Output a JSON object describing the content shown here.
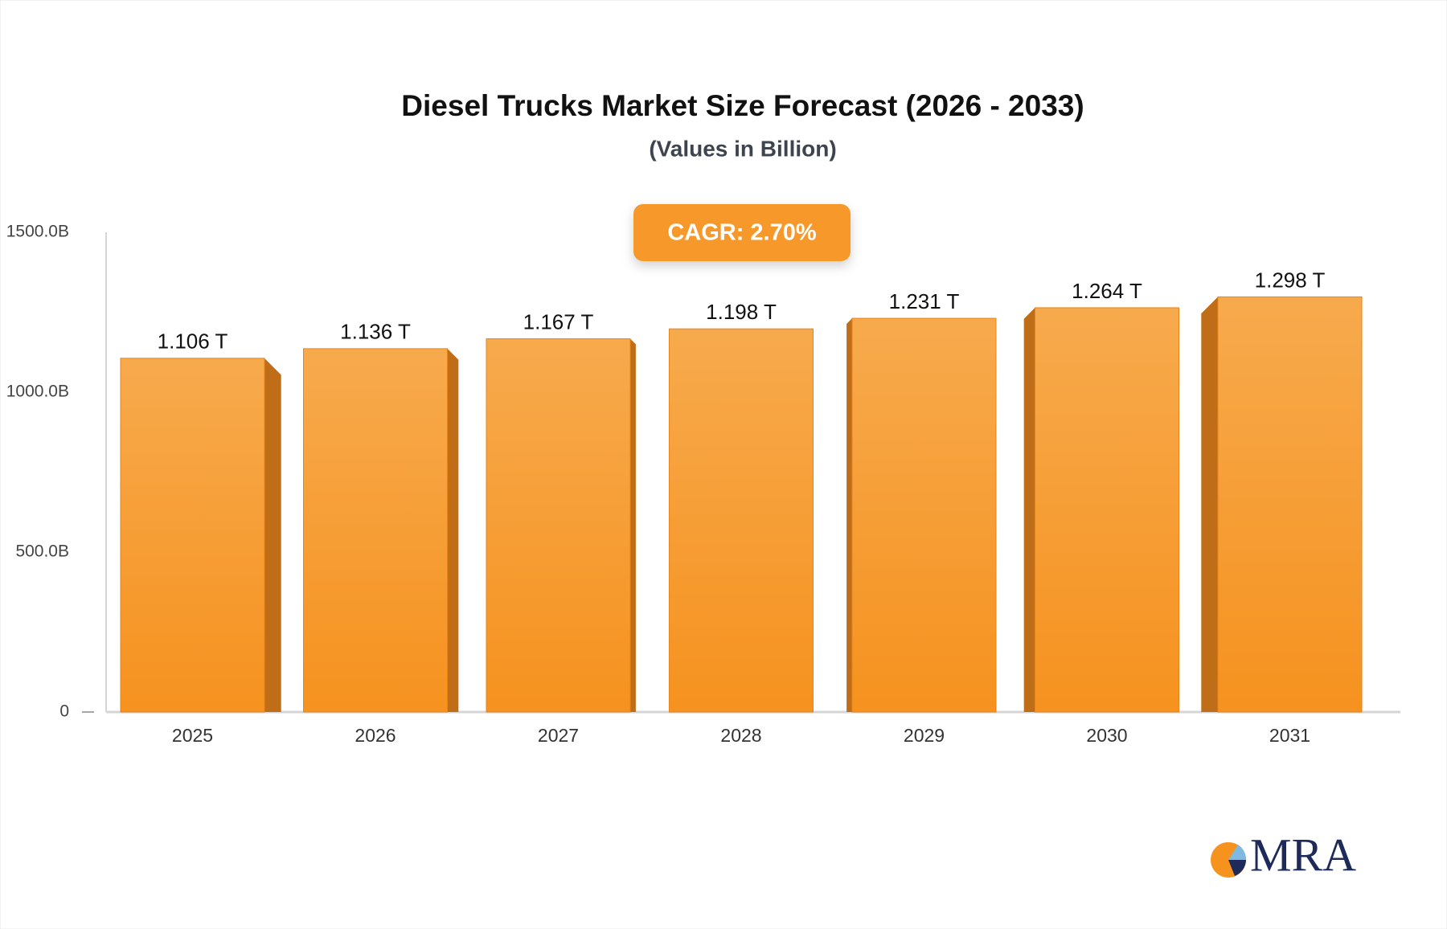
{
  "chart_data": {
    "type": "bar",
    "title": "Diesel Trucks Market Size Forecast (2026 - 2033)",
    "subtitle": "(Values in Billion)",
    "annotation": "CAGR: 2.70%",
    "categories": [
      "2025",
      "2026",
      "2027",
      "2028",
      "2029",
      "2030",
      "2031"
    ],
    "values": [
      1106,
      1136,
      1167,
      1198,
      1231,
      1264,
      1298
    ],
    "value_labels": [
      "1.106 T",
      "1.136 T",
      "1.167 T",
      "1.198 T",
      "1.231 T",
      "1.264 T",
      "1.298 T"
    ],
    "color": "#f6982a",
    "ylim": [
      0,
      1500
    ],
    "yticks": [
      0,
      {
        "value": 500,
        "label": "500.0B"
      },
      {
        "value": 1000,
        "label": "1000.0B"
      },
      {
        "value": 1500,
        "label": "1500.0B"
      }
    ],
    "grid": false,
    "logo": "MRA"
  }
}
